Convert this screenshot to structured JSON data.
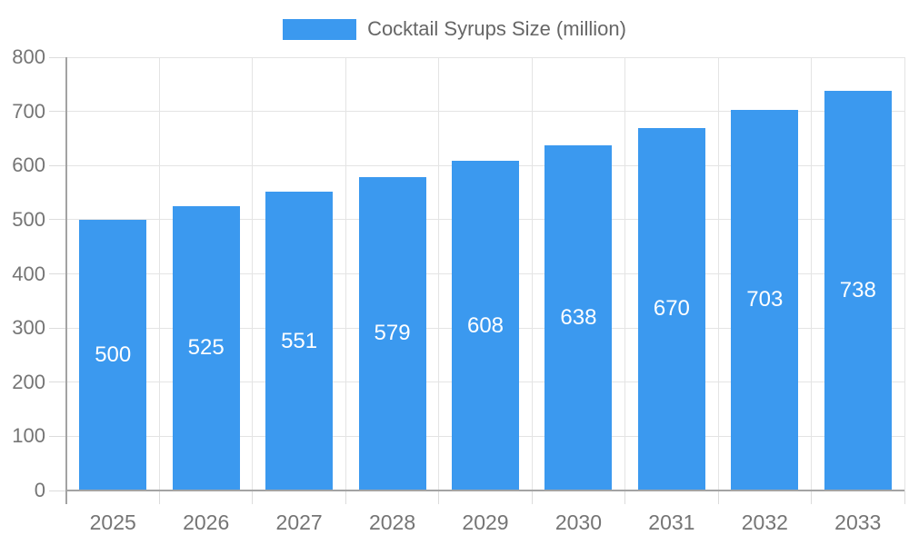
{
  "chart_data": {
    "type": "bar",
    "title": "",
    "legend_label": "Cocktail Syrups Size (million)",
    "categories": [
      "2025",
      "2026",
      "2027",
      "2028",
      "2029",
      "2030",
      "2031",
      "2032",
      "2033"
    ],
    "series": [
      {
        "name": "Cocktail Syrups Size (million)",
        "values": [
          500,
          525,
          551,
          579,
          608,
          638,
          670,
          703,
          738
        ]
      }
    ],
    "bar_value_labels": [
      "500",
      "525",
      "551",
      "579",
      "608",
      "638",
      "670",
      "703",
      "738"
    ],
    "xlabel": "",
    "ylabel": "",
    "ylim": [
      0,
      800
    ],
    "ytick_step": 100,
    "ytick_labels": [
      "0",
      "100",
      "200",
      "300",
      "400",
      "500",
      "600",
      "700",
      "800"
    ],
    "grid": true,
    "legend_position": "top-center",
    "colors": {
      "bar": "#3B99EF",
      "bar_label": "#FFFFFF",
      "axis_text": "#757575",
      "legend_text": "#666666",
      "grid": "#E4E4E4",
      "tick": "#DCDCDC",
      "axis_line": "#A3A3A3",
      "background": "#FFFFFF"
    }
  }
}
